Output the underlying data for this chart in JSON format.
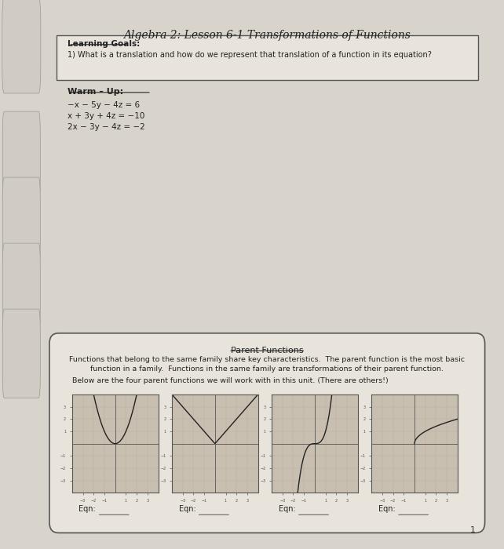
{
  "title": "Algebra 2: Lesson 6-1 Transformations of Functions",
  "bg_color": "#d8d4cc",
  "paper_color": "#e8e4dc",
  "learning_goals_title": "Learning Goals:",
  "learning_goals_text": "1) What is a translation and how do we represent that translation of a function in its equation?",
  "warm_up_title": "Warm – Up:",
  "equations": [
    "−x − 5y − 4z = 6",
    "x + 3y + 4z = −10",
    "2x − 3y − 4z = −2"
  ],
  "parent_functions_title": "Parent Functions",
  "parent_functions_desc1": "Functions that belong to the same family share key characteristics.  The parent function is the most basic",
  "parent_functions_desc2": "function in a family.  Functions in the same family are transformations of their parent function.",
  "below_text": "Below are the four parent functions we will work with in this unit. (There are others!)",
  "eqn_labels": [
    "Eqn:",
    "Eqn:",
    "Eqn:",
    "Eqn:"
  ],
  "page_number": "1",
  "graph_color": "#c8bfb0",
  "axis_color": "#555555",
  "curve_color": "#222222",
  "grid_color": "#b0a898",
  "sidebar_color": "#b8b4ac",
  "key_color": "#d0ccc4",
  "key_edge_color": "#999990"
}
